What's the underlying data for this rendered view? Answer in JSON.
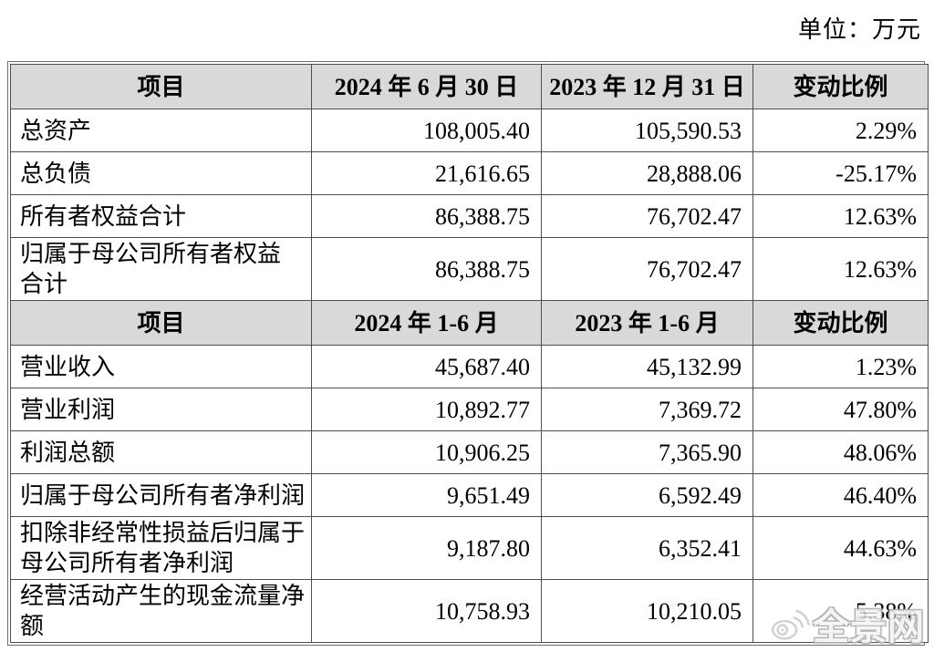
{
  "unit_label": "单位：万元",
  "watermark": {
    "site_name": "全景网",
    "icon": "weibo-eye-icon"
  },
  "colors": {
    "header_bg": "#d9d9d9",
    "grid_border": "#4f4f4f",
    "outer_border": "#6e6e6e",
    "text": "#000000",
    "watermark_outline": "#adadad"
  },
  "table": {
    "sections": [
      {
        "name": "balance-sheet-comparison",
        "columns": [
          "项目",
          "2024 年 6 月 30 日",
          "2023 年 12 月 31 日",
          "变动比例"
        ],
        "rows": [
          {
            "label": "总资产",
            "current": "108,005.40",
            "prior": "105,590.53",
            "change": "2.29%"
          },
          {
            "label": "总负债",
            "current": "21,616.65",
            "prior": "28,888.06",
            "change": "-25.17%"
          },
          {
            "label": "所有者权益合计",
            "current": "86,388.75",
            "prior": "76,702.47",
            "change": "12.63%"
          },
          {
            "label": "归属于母公司所有者权益\n合计",
            "current": "86,388.75",
            "prior": "76,702.47",
            "change": "12.63%"
          }
        ]
      },
      {
        "name": "income-statement-comparison",
        "columns": [
          "项目",
          "2024 年 1-6 月",
          "2023 年 1-6 月",
          "变动比例"
        ],
        "rows": [
          {
            "label": "营业收入",
            "current": "45,687.40",
            "prior": "45,132.99",
            "change": "1.23%"
          },
          {
            "label": "营业利润",
            "current": "10,892.77",
            "prior": "7,369.72",
            "change": "47.80%"
          },
          {
            "label": "利润总额",
            "current": "10,906.25",
            "prior": "7,365.90",
            "change": "48.06%"
          },
          {
            "label": "归属于母公司所有者净利润",
            "current": "9,651.49",
            "prior": "6,592.49",
            "change": "46.40%"
          },
          {
            "label": "扣除非经常性损益后归属于\n母公司所有者净利润",
            "current": "9,187.80",
            "prior": "6,352.41",
            "change": "44.63%"
          },
          {
            "label": "经营活动产生的现金流量净\n额",
            "current": "10,758.93",
            "prior": "10,210.05",
            "change": "5.38%"
          }
        ]
      }
    ]
  }
}
